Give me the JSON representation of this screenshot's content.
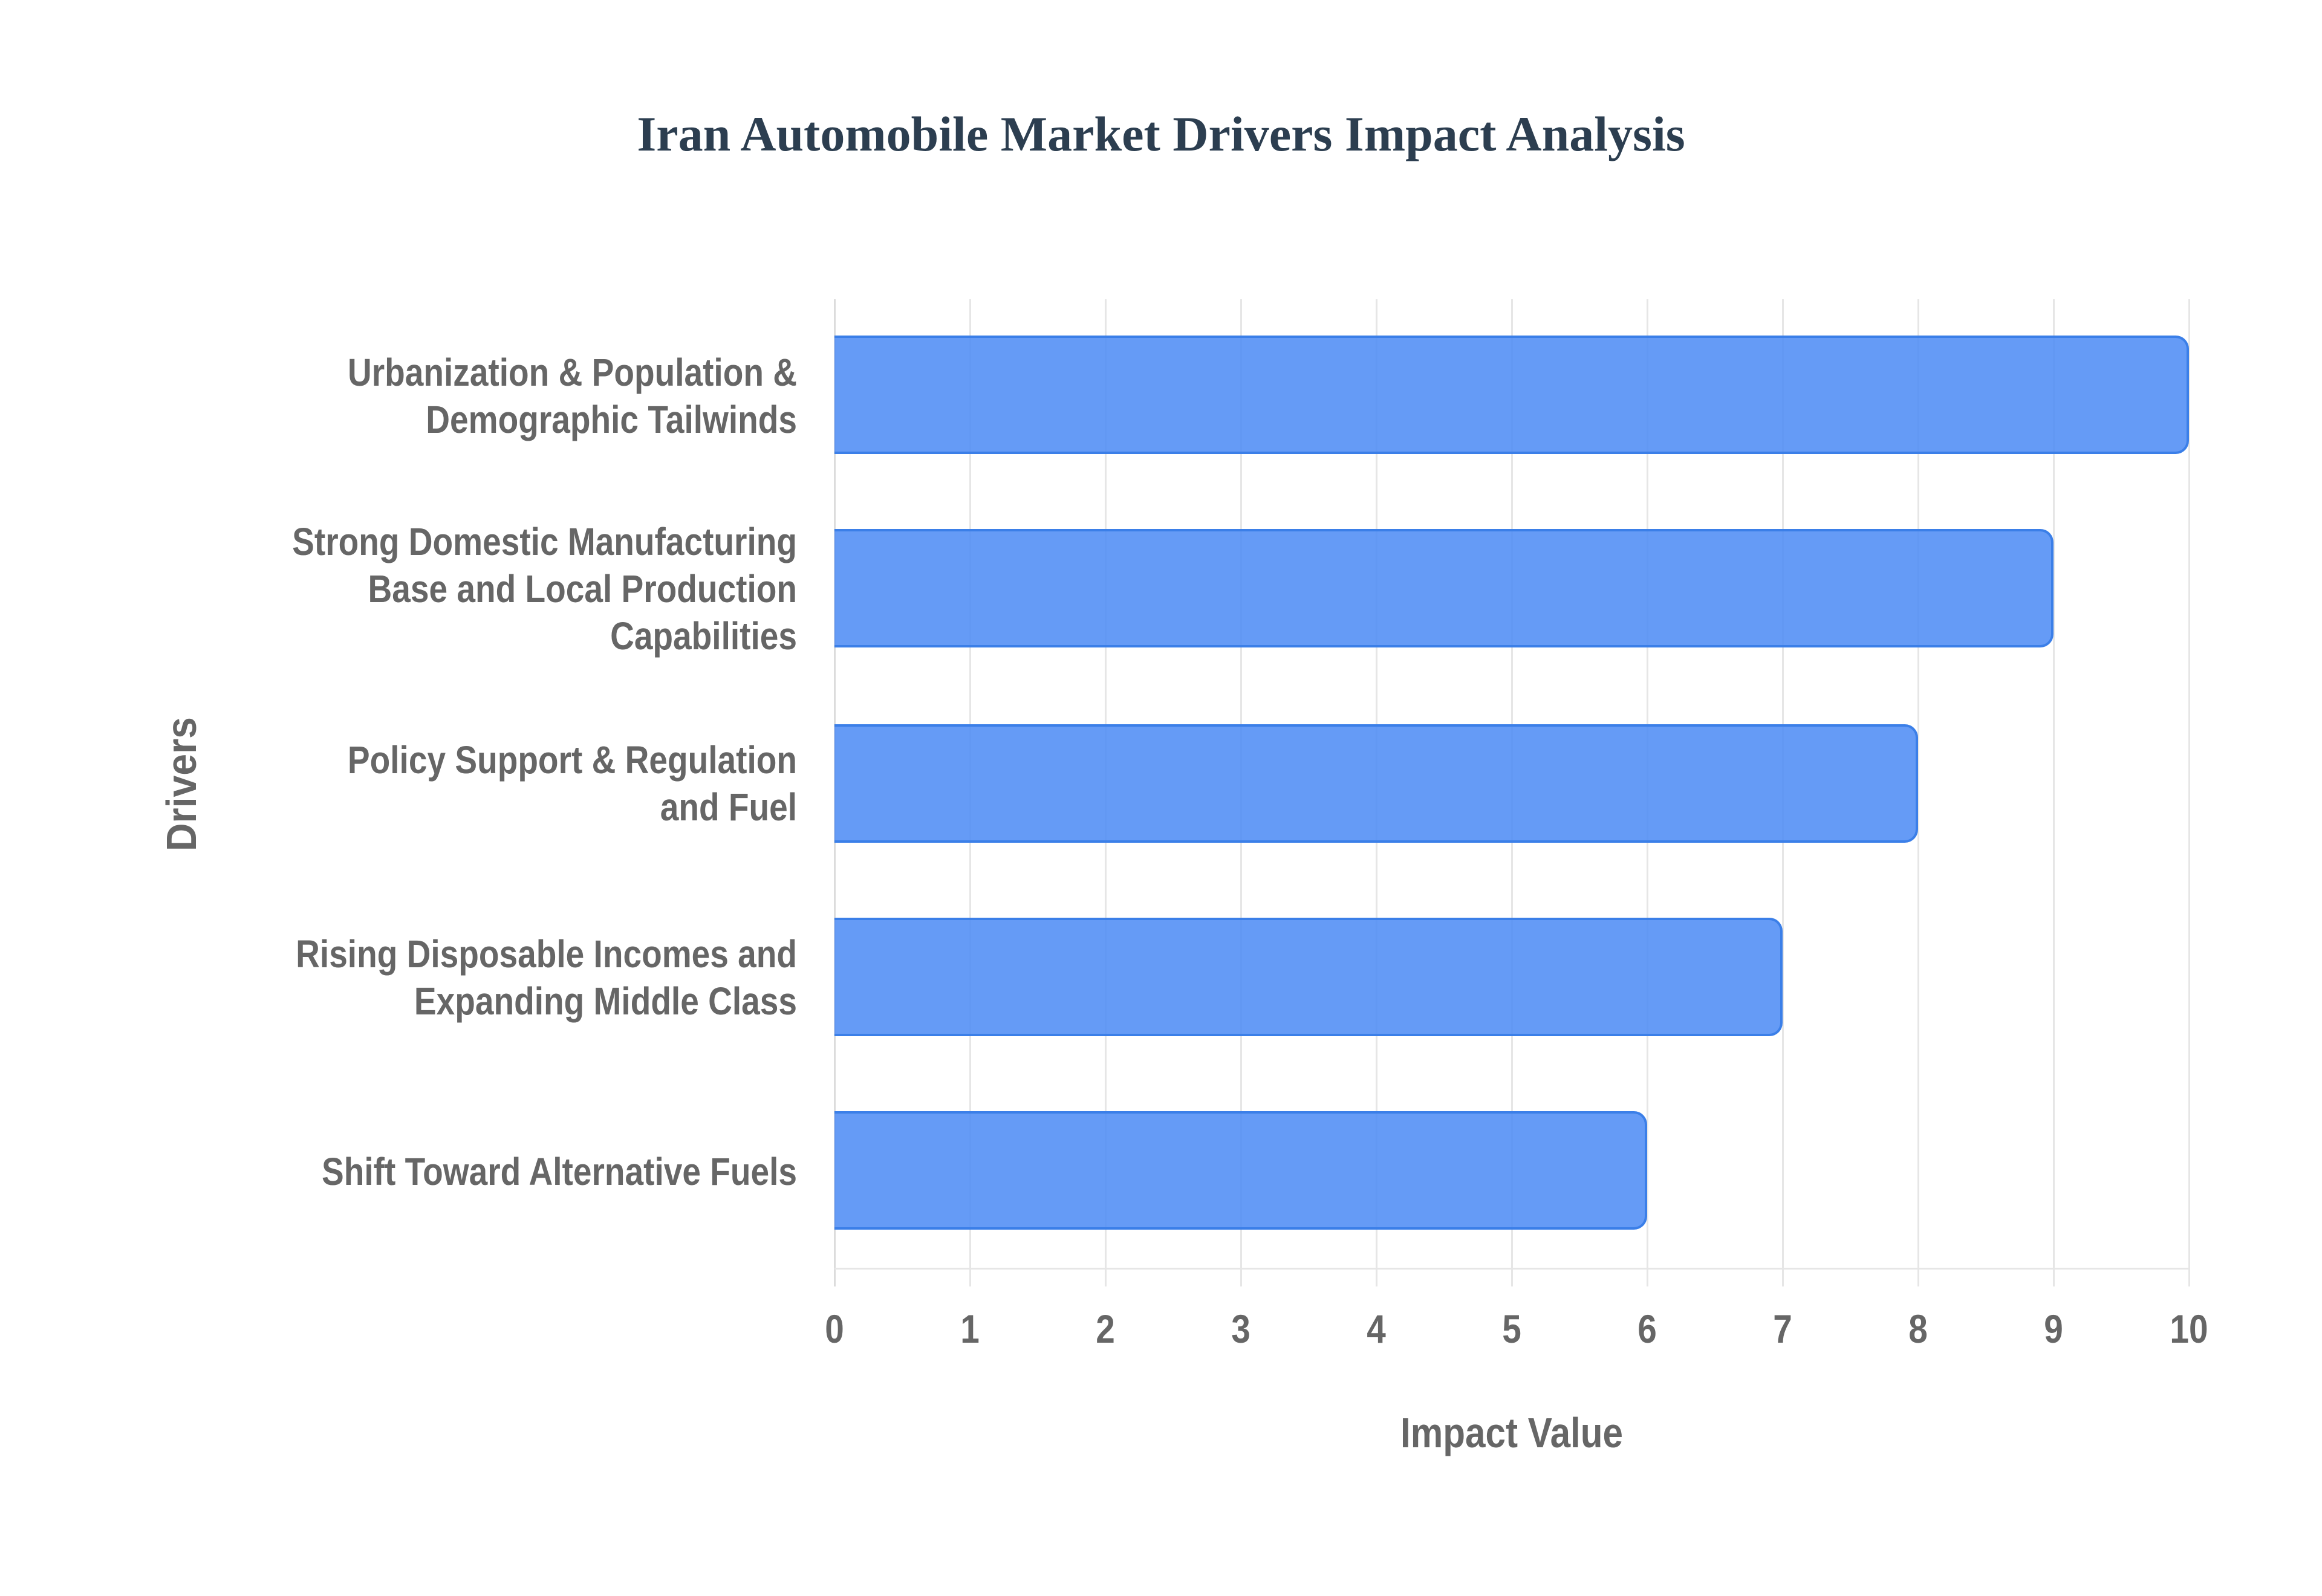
{
  "chart": {
    "title": "Iran Automobile Market Drivers Impact Analysis",
    "xlabel": "Impact Value",
    "ylabel": "Drivers",
    "ticks": [
      "0",
      "1",
      "2",
      "3",
      "4",
      "5",
      "6",
      "7",
      "8",
      "9",
      "10"
    ],
    "colors": {
      "bar_fill": "#6199f4",
      "bar_border": "#3b7fe8",
      "title": "#2c3e50",
      "axis_text": "#666666",
      "grid": "#e6e6e6"
    }
  },
  "chart_data": {
    "type": "bar",
    "orientation": "horizontal",
    "title": "Iran Automobile Market Drivers Impact Analysis",
    "xlabel": "Impact Value",
    "ylabel": "Drivers",
    "xlim": [
      0,
      10
    ],
    "grid": true,
    "legend": null,
    "categories": [
      "Urbanization & Population & Demographic Tailwinds",
      "Strong Domestic Manufacturing Base and Local Production Capabilities",
      "Policy Support & Regulation and Fuel",
      "Rising Disposable Incomes and Expanding Middle Class",
      "Shift Toward Alternative Fuels"
    ],
    "values": [
      10,
      9,
      8,
      7,
      6
    ]
  },
  "labels": [
    {
      "lines": [
        "Urbanization & Population &",
        "Demographic Tailwinds"
      ]
    },
    {
      "lines": [
        "Strong Domestic Manufacturing",
        "Base and Local Production",
        "Capabilities"
      ]
    },
    {
      "lines": [
        "Policy Support & Regulation",
        "and Fuel"
      ]
    },
    {
      "lines": [
        "Rising Disposable Incomes and",
        "Expanding Middle Class"
      ]
    },
    {
      "lines": [
        "Shift Toward Alternative Fuels"
      ]
    }
  ]
}
